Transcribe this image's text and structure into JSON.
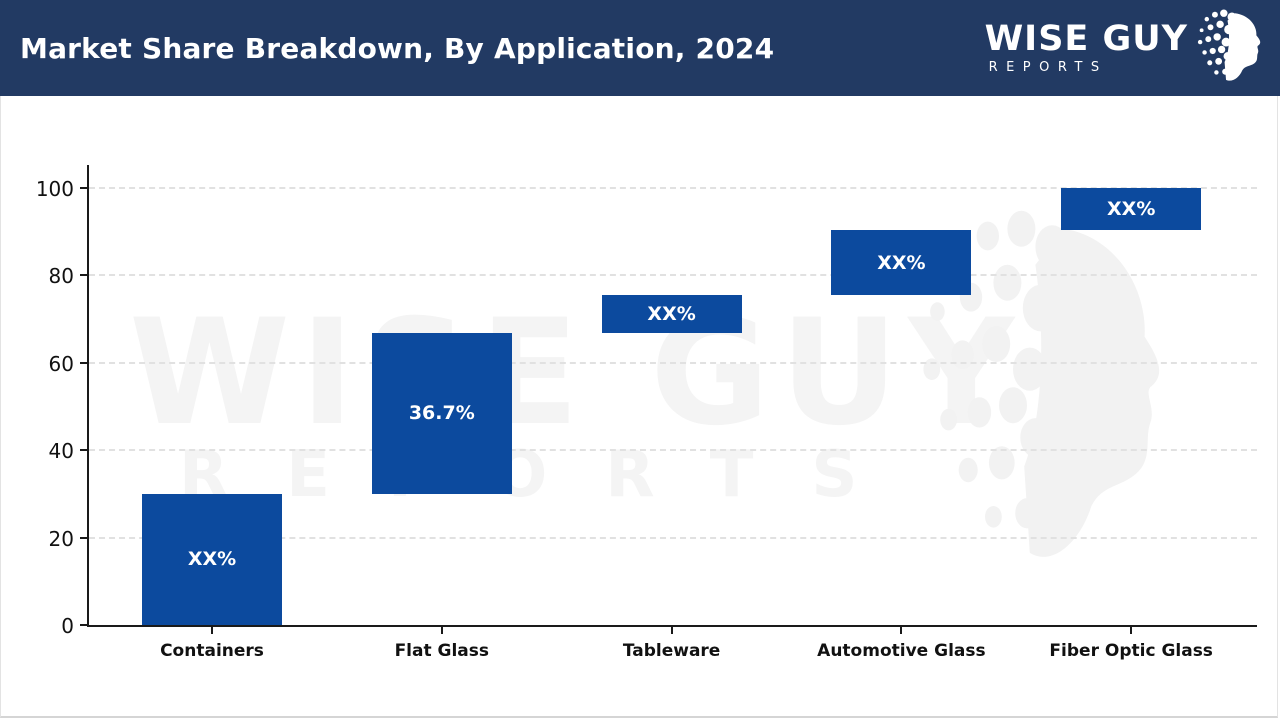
{
  "header": {
    "title": "Market Share Breakdown, By Application, 2024",
    "logo": {
      "line1": "WISE GUY",
      "line2": "REPORTS"
    }
  },
  "watermark": {
    "line1": "WISE GUY",
    "line2": "REPORTS"
  },
  "colors": {
    "header_bg": "#223a63",
    "bar": "#0c4a9e",
    "bar_label": "#ffffff",
    "grid": "#e1e1e1",
    "axis": "#1a1a1a",
    "watermark": "#f4f4f4"
  },
  "chart_data": {
    "type": "bar",
    "subtype": "waterfall",
    "title": "Market Share Breakdown, By Application, 2024",
    "categories": [
      "Containers",
      "Flat Glass",
      "Tableware",
      "Automotive Glass",
      "Fiber Optic Glass"
    ],
    "bars": [
      {
        "category": "Containers",
        "start": 0,
        "end": 30,
        "label": "XX%"
      },
      {
        "category": "Flat Glass",
        "start": 30,
        "end": 66.7,
        "label": "36.7%"
      },
      {
        "category": "Tableware",
        "start": 66.7,
        "end": 75.4,
        "label": "XX%"
      },
      {
        "category": "Automotive Glass",
        "start": 75.4,
        "end": 90.3,
        "label": "XX%"
      },
      {
        "category": "Fiber Optic Glass",
        "start": 90.3,
        "end": 100,
        "label": "XX%"
      }
    ],
    "y_ticks": [
      0,
      20,
      40,
      60,
      80,
      100
    ],
    "ylim": [
      0,
      105
    ],
    "xlabel": "",
    "ylabel": "",
    "grid": "horizontal-dashed",
    "legend": "none"
  }
}
